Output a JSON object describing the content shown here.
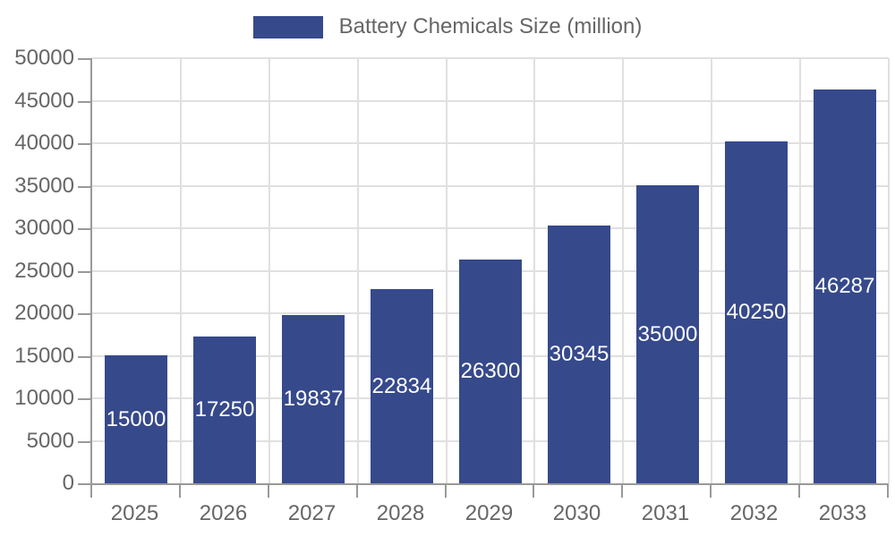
{
  "legend": {
    "label": "Battery Chemicals Size (million)"
  },
  "chart_data": {
    "type": "bar",
    "title": "Battery Chemicals Size (million)",
    "categories": [
      "2025",
      "2026",
      "2027",
      "2028",
      "2029",
      "2030",
      "2031",
      "2032",
      "2033"
    ],
    "values": [
      15000,
      17250,
      19837,
      22834,
      26300,
      30345,
      35000,
      40250,
      46287
    ],
    "series": [
      {
        "name": "Battery Chemicals Size (million)",
        "values": [
          15000,
          17250,
          19837,
          22834,
          26300,
          30345,
          35000,
          40250,
          46287
        ]
      }
    ],
    "xlabel": "",
    "ylabel": "",
    "ylim": [
      0,
      50000
    ],
    "y_tick_interval": 5000,
    "y_tick_labels": [
      "0",
      "5000",
      "10000",
      "15000",
      "20000",
      "25000",
      "30000",
      "35000",
      "40000",
      "45000",
      "50000"
    ],
    "grid": true,
    "legend_position": "top",
    "value_labels_inside_bars": true
  },
  "colors": {
    "bar": "#36498B",
    "axis_line": "#999999",
    "grid_line": "#E0E0E0",
    "tick_label": "#666666",
    "legend_text": "#666666",
    "value_label": "#FFFFFF",
    "background": "#FFFFFF"
  }
}
